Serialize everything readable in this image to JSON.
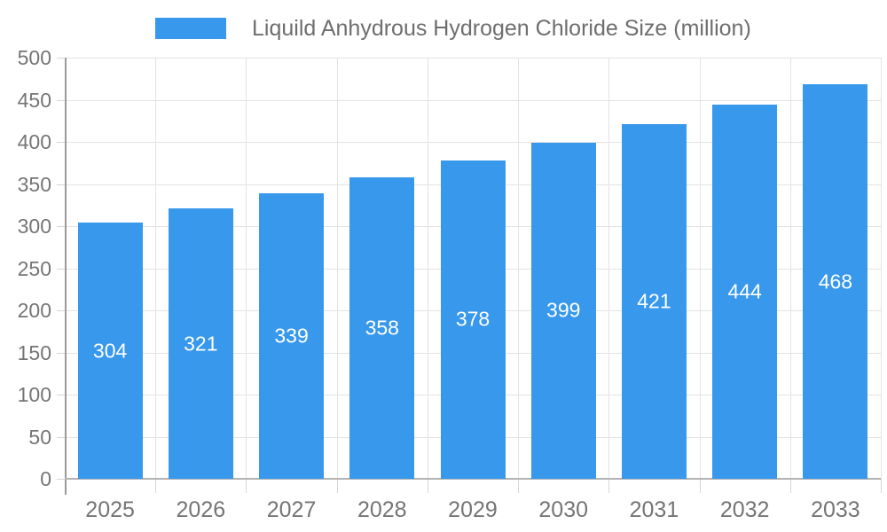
{
  "legend": {
    "label": "Liquild Anhydrous Hydrogen Chloride Size (million)"
  },
  "chart_data": {
    "type": "bar",
    "title": "Liquild Anhydrous Hydrogen Chloride Size (million)",
    "categories": [
      "2025",
      "2026",
      "2027",
      "2028",
      "2029",
      "2030",
      "2031",
      "2032",
      "2033"
    ],
    "values": [
      304,
      321,
      339,
      358,
      378,
      399,
      421,
      444,
      468
    ],
    "series": [
      {
        "name": "Liquild Anhydrous Hydrogen Chloride Size (million)",
        "values": [
          304,
          321,
          339,
          358,
          378,
          399,
          421,
          444,
          468
        ]
      }
    ],
    "xlabel": "",
    "ylabel": "",
    "ylim": [
      0,
      500
    ],
    "ytick_step": 50,
    "grid": true,
    "legend_position": "top",
    "value_label_position": "inside-middle",
    "colors": {
      "bar": "#3898ec",
      "grid": "#e3e3e3",
      "axis_y": "#9a9a9a",
      "axis_x": "#b3b3b3",
      "tick": "#d6d6d6",
      "axis_text": "#757575",
      "legend_text": "#6e6e6e",
      "value_text": "#ffffff",
      "background": "#ffffff"
    }
  }
}
